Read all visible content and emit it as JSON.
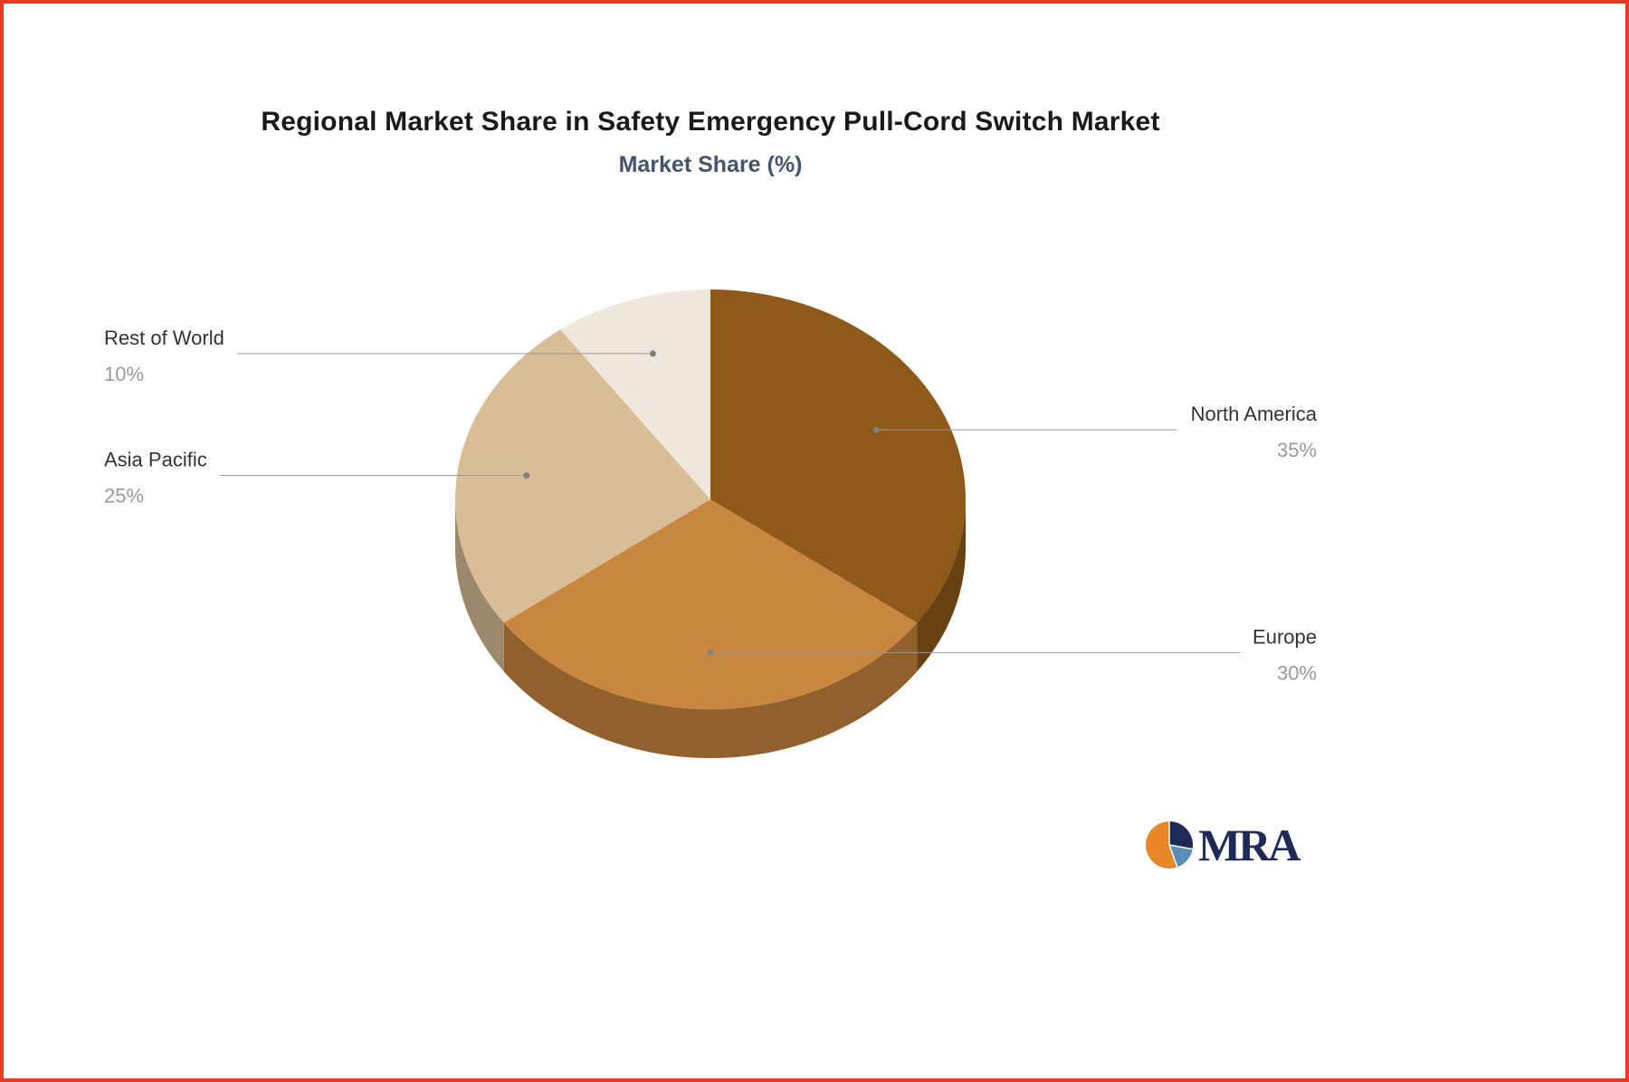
{
  "chart_data": {
    "type": "pie",
    "title": "Regional Market Share in Safety Emergency Pull-Cord Switch Market",
    "subtitle": "Market Share (%)",
    "unit": "%",
    "effect": "3d",
    "legend": "none",
    "direction": "clockwise",
    "start_angle_deg": 0,
    "categories": [
      "North America",
      "Europe",
      "Asia Pacific",
      "Rest of World"
    ],
    "values": [
      35,
      30,
      25,
      10
    ],
    "slices": [
      {
        "name": "North America",
        "value": 35,
        "color": "#8F5A19",
        "label_side": "right"
      },
      {
        "name": "Europe",
        "value": 30,
        "color": "#C8863F",
        "label_side": "right"
      },
      {
        "name": "Asia Pacific",
        "value": 25,
        "color": "#D9BD97",
        "label_side": "left"
      },
      {
        "name": "Rest of World",
        "value": 10,
        "color": "#F0E7DC",
        "label_side": "left"
      }
    ],
    "label_name_color": "#333333",
    "label_value_color": "#999999",
    "leader_line_color": "#999999"
  },
  "brand": {
    "name": "MRA",
    "text_color": "#1E2B58",
    "icon_colors": {
      "orange": "#E8872A",
      "navy": "#1E2B58",
      "blue": "#5B8DB8"
    }
  },
  "frame_color": "#E63B22"
}
